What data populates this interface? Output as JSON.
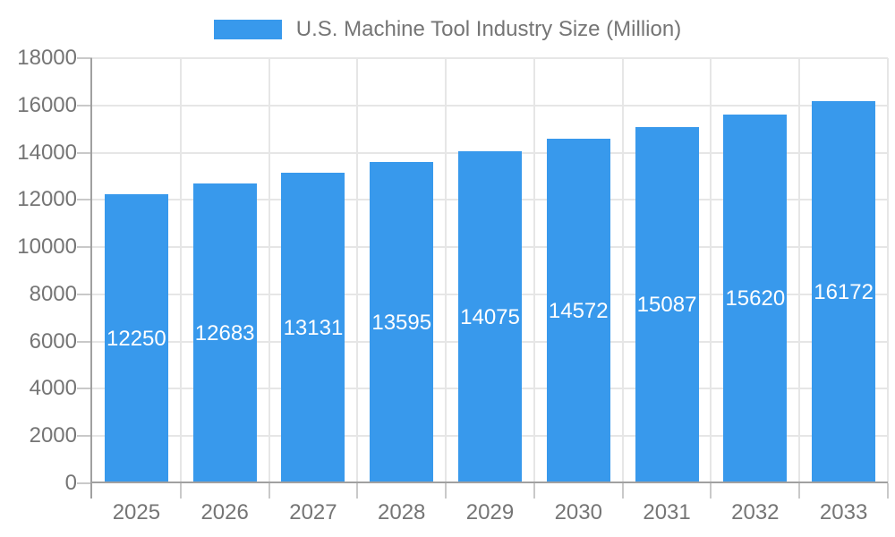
{
  "chart_data": {
    "type": "bar",
    "title": "U.S. Machine Tool Industry Size (Million)",
    "categories": [
      "2025",
      "2026",
      "2027",
      "2028",
      "2029",
      "2030",
      "2031",
      "2032",
      "2033"
    ],
    "values": [
      12250,
      12683,
      13131,
      13595,
      14075,
      14572,
      15087,
      15620,
      16172
    ],
    "value_labels": [
      "12250",
      "12683",
      "13131",
      "13595",
      "14075",
      "14572",
      "15087",
      "15620",
      "16172"
    ],
    "xlabel": "",
    "ylabel": "",
    "ylim": [
      0,
      18000
    ],
    "ytick_step": 2000,
    "ytick_labels": [
      "0",
      "2000",
      "4000",
      "6000",
      "8000",
      "10000",
      "12000",
      "14000",
      "16000",
      "18000"
    ],
    "grid": "both",
    "legend_position": "top"
  },
  "colors": {
    "bar": "#3899EC",
    "grid": "#E6E6E6",
    "tick": "#C9C9C9",
    "axis": "#A0A0A0",
    "label_text": "#757575",
    "value_text": "#FFFFFF",
    "background": "#FFFFFF"
  }
}
